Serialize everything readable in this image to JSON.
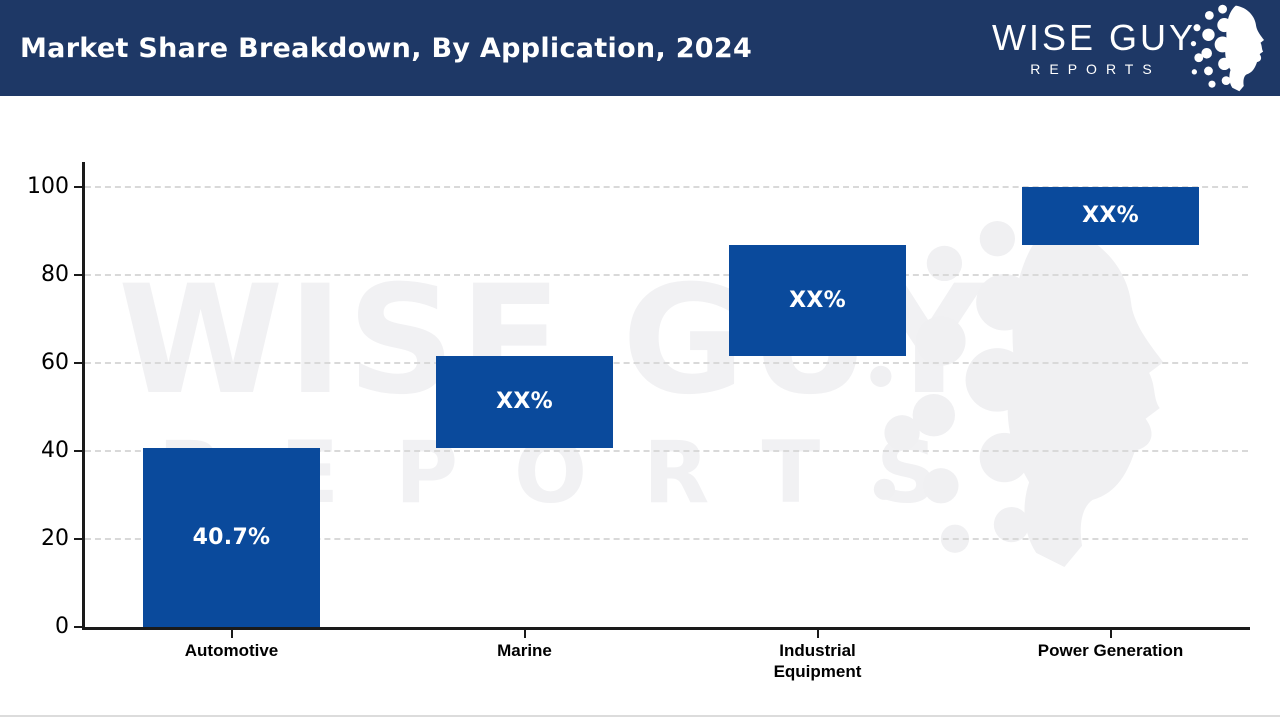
{
  "header": {
    "title": "Market Share Breakdown, By Application, 2024",
    "logo": {
      "wordmark": "WISE GUY",
      "subtext": "REPORTS"
    }
  },
  "watermark": {
    "wordmark": "WISE GUY",
    "subtext": "REPORTS"
  },
  "colors": {
    "header_bg": "#1e3866",
    "bar": "#0a4a9c",
    "axis": "#1a1a1a",
    "grid": "#d9d9d9",
    "text": "#000000",
    "value_text": "#ffffff",
    "watermark": "#f1f1f3",
    "background": "#ffffff"
  },
  "chart_data": {
    "type": "bar",
    "variant": "waterfall",
    "title": "Market Share Breakdown, By Application, 2024",
    "categories": [
      "Automotive",
      "Marine",
      "Industrial Equipment",
      "Power Generation"
    ],
    "category_lines": [
      [
        "Automotive"
      ],
      [
        "Marine"
      ],
      [
        "Industrial",
        "Equipment"
      ],
      [
        "Power Generation"
      ]
    ],
    "segments": [
      {
        "category": "Automotive",
        "start": 0,
        "end": 40.7,
        "label": "40.7%"
      },
      {
        "category": "Marine",
        "start": 40.7,
        "end": 61.6,
        "label": "XX%"
      },
      {
        "category": "Industrial Equipment",
        "start": 61.6,
        "end": 86.9,
        "label": "XX%"
      },
      {
        "category": "Power Generation",
        "start": 86.9,
        "end": 100,
        "label": "XX%"
      }
    ],
    "ylim": [
      0,
      105
    ],
    "yticks": [
      0,
      20,
      40,
      60,
      80,
      100
    ],
    "xlabel": "",
    "ylabel": "",
    "grid": {
      "horizontal": true,
      "style": "dashed"
    },
    "legend": false,
    "bar_color": "#0a4a9c",
    "value_label_color": "#ffffff"
  }
}
